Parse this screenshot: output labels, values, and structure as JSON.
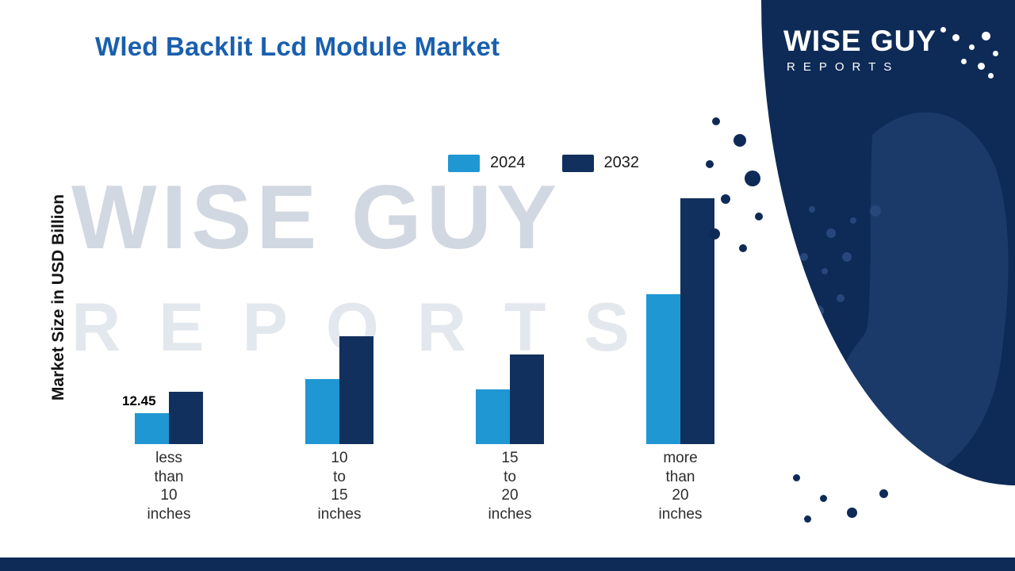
{
  "page": {
    "title": "Wled Backlit Lcd Module Market"
  },
  "logo": {
    "line1": "WISE GUY",
    "line2": "REPORTS"
  },
  "watermark": {
    "line1": "WISE GUY",
    "line2": "REPORTS"
  },
  "chart_data": {
    "type": "bar",
    "title": "Wled Backlit Lcd Module Market",
    "ylabel": "Market Size in USD Billion",
    "xlabel": "",
    "categories": [
      "less than 10 inches",
      "10 to 15 inches",
      "15 to 20 inches",
      "more than 20 inches"
    ],
    "series": [
      {
        "name": "2024",
        "color": "#1f97d3",
        "values": [
          12.45,
          26.2,
          22.0,
          60.0
        ]
      },
      {
        "name": "2032",
        "color": "#12305e",
        "values": [
          21.1,
          43.4,
          36.1,
          98.6
        ]
      }
    ],
    "ylim": [
      0,
      105
    ],
    "grid": false,
    "legend_position": "top-center",
    "bar_labels": [
      {
        "series": "2024",
        "category_index": 0,
        "text": "12.45"
      }
    ]
  },
  "colors": {
    "title": "#1a5fad",
    "bar_2024": "#1f97d3",
    "bar_2032": "#12305e",
    "corner_navy": "#0e2b57",
    "footer_navy": "#0e2b57",
    "watermark_primary": "#d2d8e2",
    "watermark_secondary": "#e3e7ee"
  }
}
